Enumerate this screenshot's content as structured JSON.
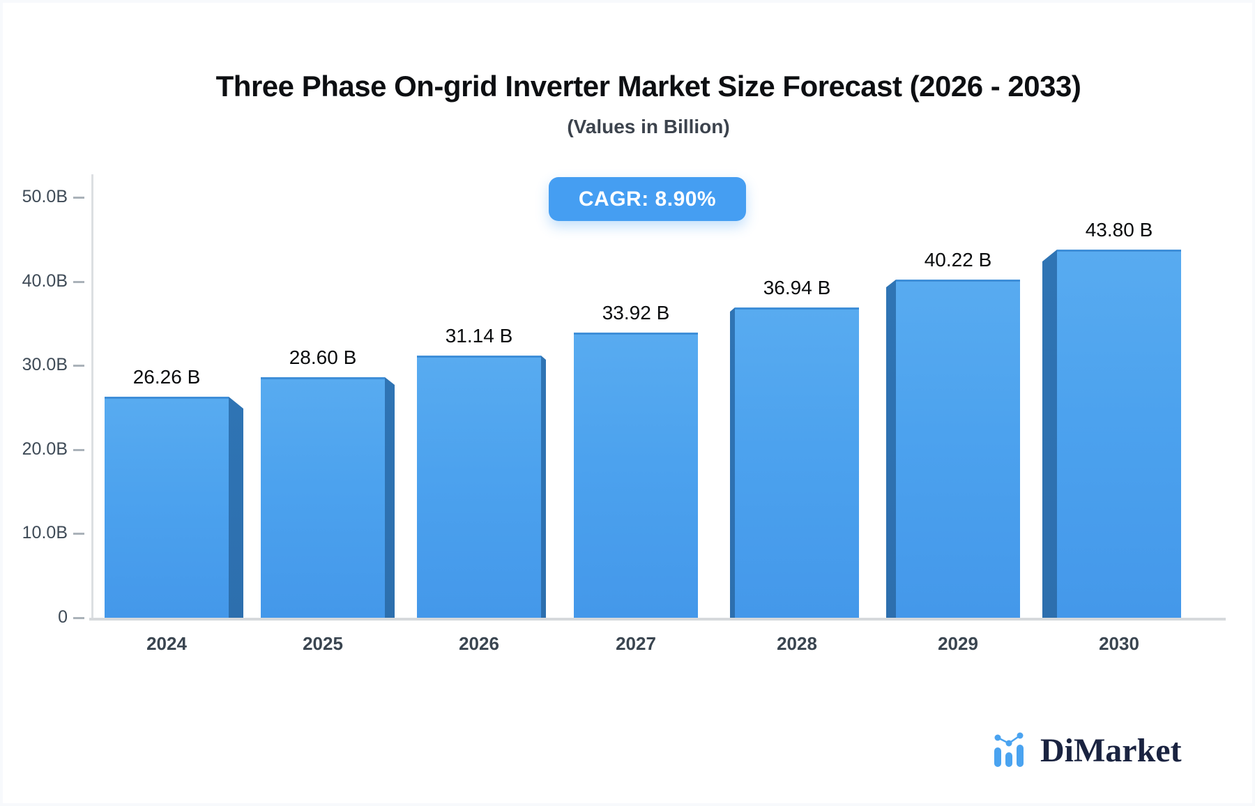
{
  "title": "Three Phase On-grid Inverter Market Size Forecast (2026 - 2033)",
  "subtitle": "(Values in Billion)",
  "badge": {
    "label": "CAGR: 8.90%",
    "color": "#459ef2"
  },
  "logo": {
    "wordmark": "DiMarket",
    "icon": "mini-bar-line-chart-icon",
    "icon_color": "#4aa3f0",
    "text_color": "#1a2340"
  },
  "chart_data": {
    "type": "bar",
    "title": "Three Phase On-grid Inverter Market Size Forecast (2026 - 2033)",
    "subtitle": "(Values in Billion)",
    "categories": [
      "2024",
      "2025",
      "2026",
      "2027",
      "2028",
      "2029",
      "2030"
    ],
    "values": [
      26.26,
      28.6,
      31.14,
      33.92,
      36.94,
      40.22,
      43.8
    ],
    "value_labels": [
      "26.26 B",
      "28.60 B",
      "31.14 B",
      "33.92 B",
      "36.94 B",
      "40.22 B",
      "43.80 B"
    ],
    "annotation": "CAGR: 8.90%",
    "xlabel": "",
    "ylabel": "",
    "ylim": [
      0,
      50
    ],
    "ytick_values": [
      50,
      40,
      30,
      20,
      10,
      0
    ],
    "ytick_labels": [
      "50.0B",
      "40.0B",
      "30.0B",
      "20.0B",
      "10.0B",
      "0"
    ],
    "grid": false,
    "legend": "none",
    "bar_color": "#4ca2ee",
    "bar_side_color": "#2e71b0",
    "bar_style": "3d-perspective-center"
  }
}
